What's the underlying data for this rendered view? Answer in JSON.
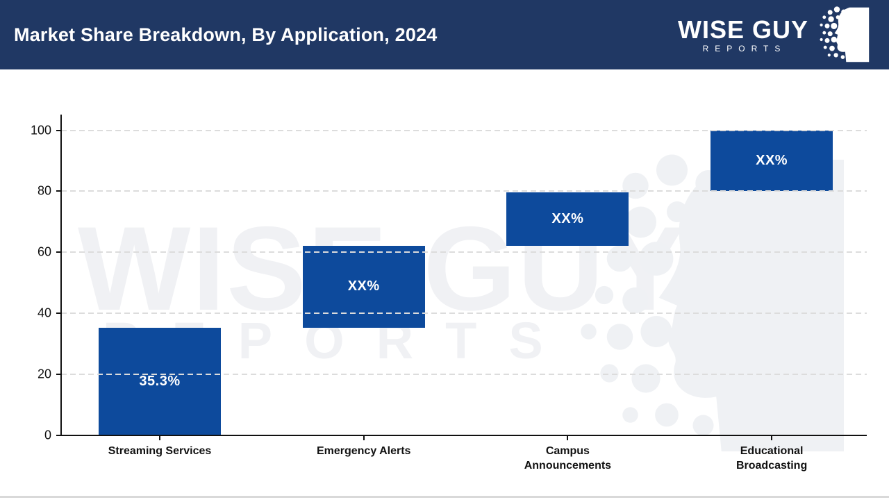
{
  "header": {
    "title": "Market Share Breakdown, By Application, 2024",
    "bg_color": "#203864",
    "logo": {
      "line1": "WISE GUY",
      "line2": "REPORTS"
    }
  },
  "watermark": {
    "line1": "WISE GUY",
    "line2": "REPORTS"
  },
  "chart_data": {
    "type": "bar",
    "subtype": "waterfall",
    "title": "Market Share Breakdown, By Application, 2024",
    "categories": [
      "Streaming Services",
      "Emergency Alerts",
      "Campus Announcements",
      "Educational Broadcasting"
    ],
    "bars": [
      {
        "category": "Streaming Services",
        "start": 0,
        "end": 35.3,
        "label": "35.3%"
      },
      {
        "category": "Emergency Alerts",
        "start": 35.3,
        "end": 62,
        "label": "XX%"
      },
      {
        "category": "Campus Announcements",
        "start": 62,
        "end": 79.5,
        "label": "XX%"
      },
      {
        "category": "Educational Broadcasting",
        "start": 80,
        "end": 100,
        "label": "XX%"
      }
    ],
    "yticks": [
      0,
      20,
      40,
      60,
      80,
      100
    ],
    "ylim": [
      0,
      105
    ],
    "xlabel": "",
    "ylabel": "",
    "grid": true,
    "legend": "none",
    "bar_color": "#0d4a9c",
    "grid_color": "#dcdcdc"
  }
}
